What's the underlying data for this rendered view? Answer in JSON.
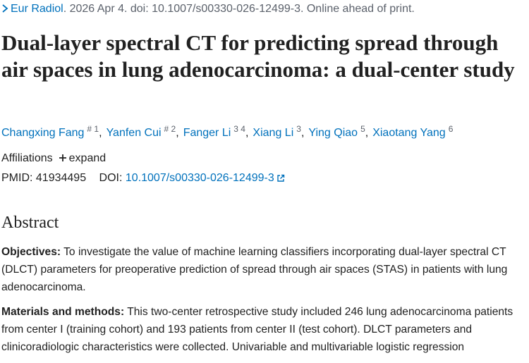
{
  "citation": {
    "journal": "Eur Radiol",
    "details": ". 2026 Apr 4. doi: 10.1007/s00330-026-12499-3. Online ahead of print."
  },
  "title": "Dual-layer spectral CT for predicting spread through air spaces in lung adenocarcinoma: a dual-center study",
  "authors": [
    {
      "name": "Changxing Fang",
      "sup": "# 1",
      "sep": ","
    },
    {
      "name": "Yanfen Cui",
      "sup": "# 2",
      "sep": ","
    },
    {
      "name": "Fanger Li",
      "sup": "3 4",
      "sep": ","
    },
    {
      "name": "Xiang Li",
      "sup": "3",
      "sep": ","
    },
    {
      "name": "Ying Qiao",
      "sup": "5",
      "sep": ","
    },
    {
      "name": "Xiaotang Yang",
      "sup": "6"
    }
  ],
  "affiliations": {
    "label": "Affiliations",
    "toggle": "expand"
  },
  "identifiers": {
    "pmid_label": "PMID:",
    "pmid": "41934495",
    "doi_label": "DOI:",
    "doi": "10.1007/s00330-026-12499-3"
  },
  "abstract": {
    "heading": "Abstract",
    "sections": [
      {
        "label": "Objectives:",
        "text": "To investigate the value of machine learning classifiers incorporating dual-layer spectral CT (DLCT) parameters for preoperative prediction of spread through air spaces (STAS) in patients with lung adenocarcinoma."
      },
      {
        "label": "Materials and methods:",
        "text": "This two-center retrospective study included 246 lung adenocarcinoma patients from center I (training cohort) and 193 patients from center II (test cohort). DLCT parameters and clinicoradiologic characteristics were collected. Univariable and multivariable logistic regression"
      }
    ]
  }
}
